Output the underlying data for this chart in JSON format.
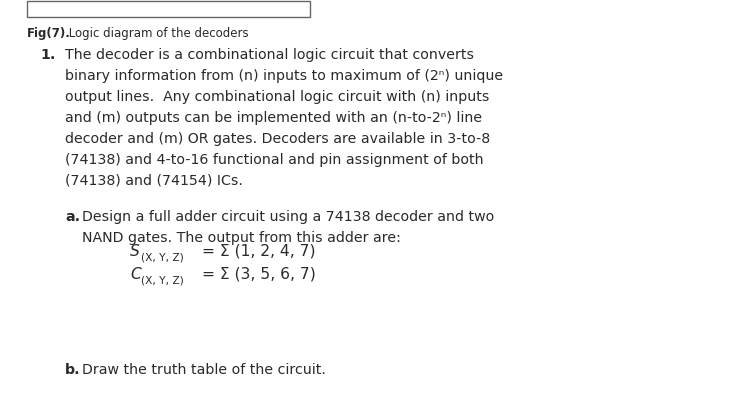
{
  "bg_color": "#ffffff",
  "fig_width": 7.53,
  "fig_height": 4.06,
  "dpi": 100,
  "text_color": "#2a2a2a",
  "font_family": "DejaVu Sans",
  "fig_label_bold": "Fig(7).",
  "fig_label_normal": " Logic diagram of the decoders",
  "fig_label_fontsize": 8.5,
  "item_fontsize": 10.2,
  "paragraph_lines": [
    "The decoder is a combinational logic circuit that converts",
    "binary information from (n) inputs to maximum of (2ⁿ) unique",
    "output lines.  Any combinational logic circuit with (n) inputs",
    "and (m) outputs can be implemented with an (n-to-2ⁿ) line",
    "decoder and (m) OR gates. Decoders are available in 3-to-8",
    "(74138) and 4-to-16 functional and pin assignment of both",
    "(74138) and (74154) ICs."
  ],
  "sub_a_lines": [
    "Design a full adder circuit using a 74138 decoder and two",
    "NAND gates. The output from this adder are:"
  ],
  "eq_s_main": "S",
  "eq_s_sub": "(X, Y, Z)",
  "eq_s_rhs": "= Σ (1, 2, 4, 7)",
  "eq_c_main": "C",
  "eq_c_sub": "(X, Y, Z)",
  "eq_c_rhs": "= Σ (3, 5, 6, 7)",
  "sub_b_text": "Draw the truth table of the circuit."
}
